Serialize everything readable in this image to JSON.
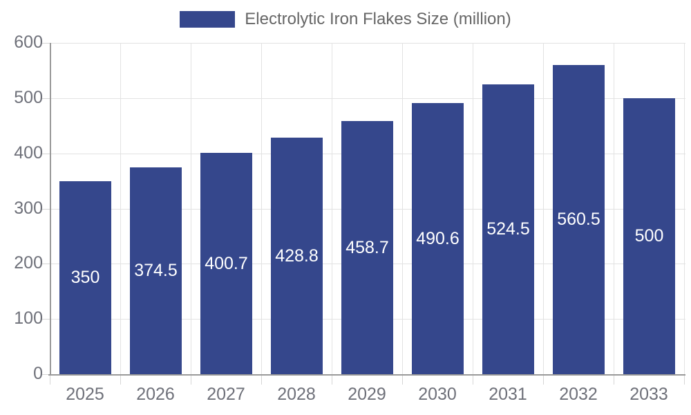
{
  "legend": {
    "label": "Electrolytic Iron Flakes Size (million)"
  },
  "chart_data": {
    "type": "bar",
    "title": "Electrolytic Iron Flakes Size (million)",
    "categories": [
      "2025",
      "2026",
      "2027",
      "2028",
      "2029",
      "2030",
      "2031",
      "2032",
      "2033"
    ],
    "series": [
      {
        "name": "Electrolytic Iron Flakes Size (million)",
        "values": [
          350,
          374.5,
          400.7,
          428.8,
          458.7,
          490.6,
          524.5,
          560.5,
          500
        ]
      }
    ],
    "value_labels": [
      "350",
      "374.5",
      "400.7",
      "428.8",
      "458.7",
      "490.6",
      "524.5",
      "560.5",
      "500"
    ],
    "xlabel": "",
    "ylabel": "",
    "ylim": [
      0,
      600
    ],
    "yticks": [
      0,
      100,
      200,
      300,
      400,
      500,
      600
    ],
    "grid": "on",
    "legend_position": "top-center",
    "colors": {
      "bar": "#35478C",
      "value_label": "#ffffff",
      "grid_line": "#e2e2e2",
      "axis_line": "#999999",
      "tick_label": "#6E7079",
      "legend_text": "#666666",
      "background": "#ffffff"
    }
  }
}
